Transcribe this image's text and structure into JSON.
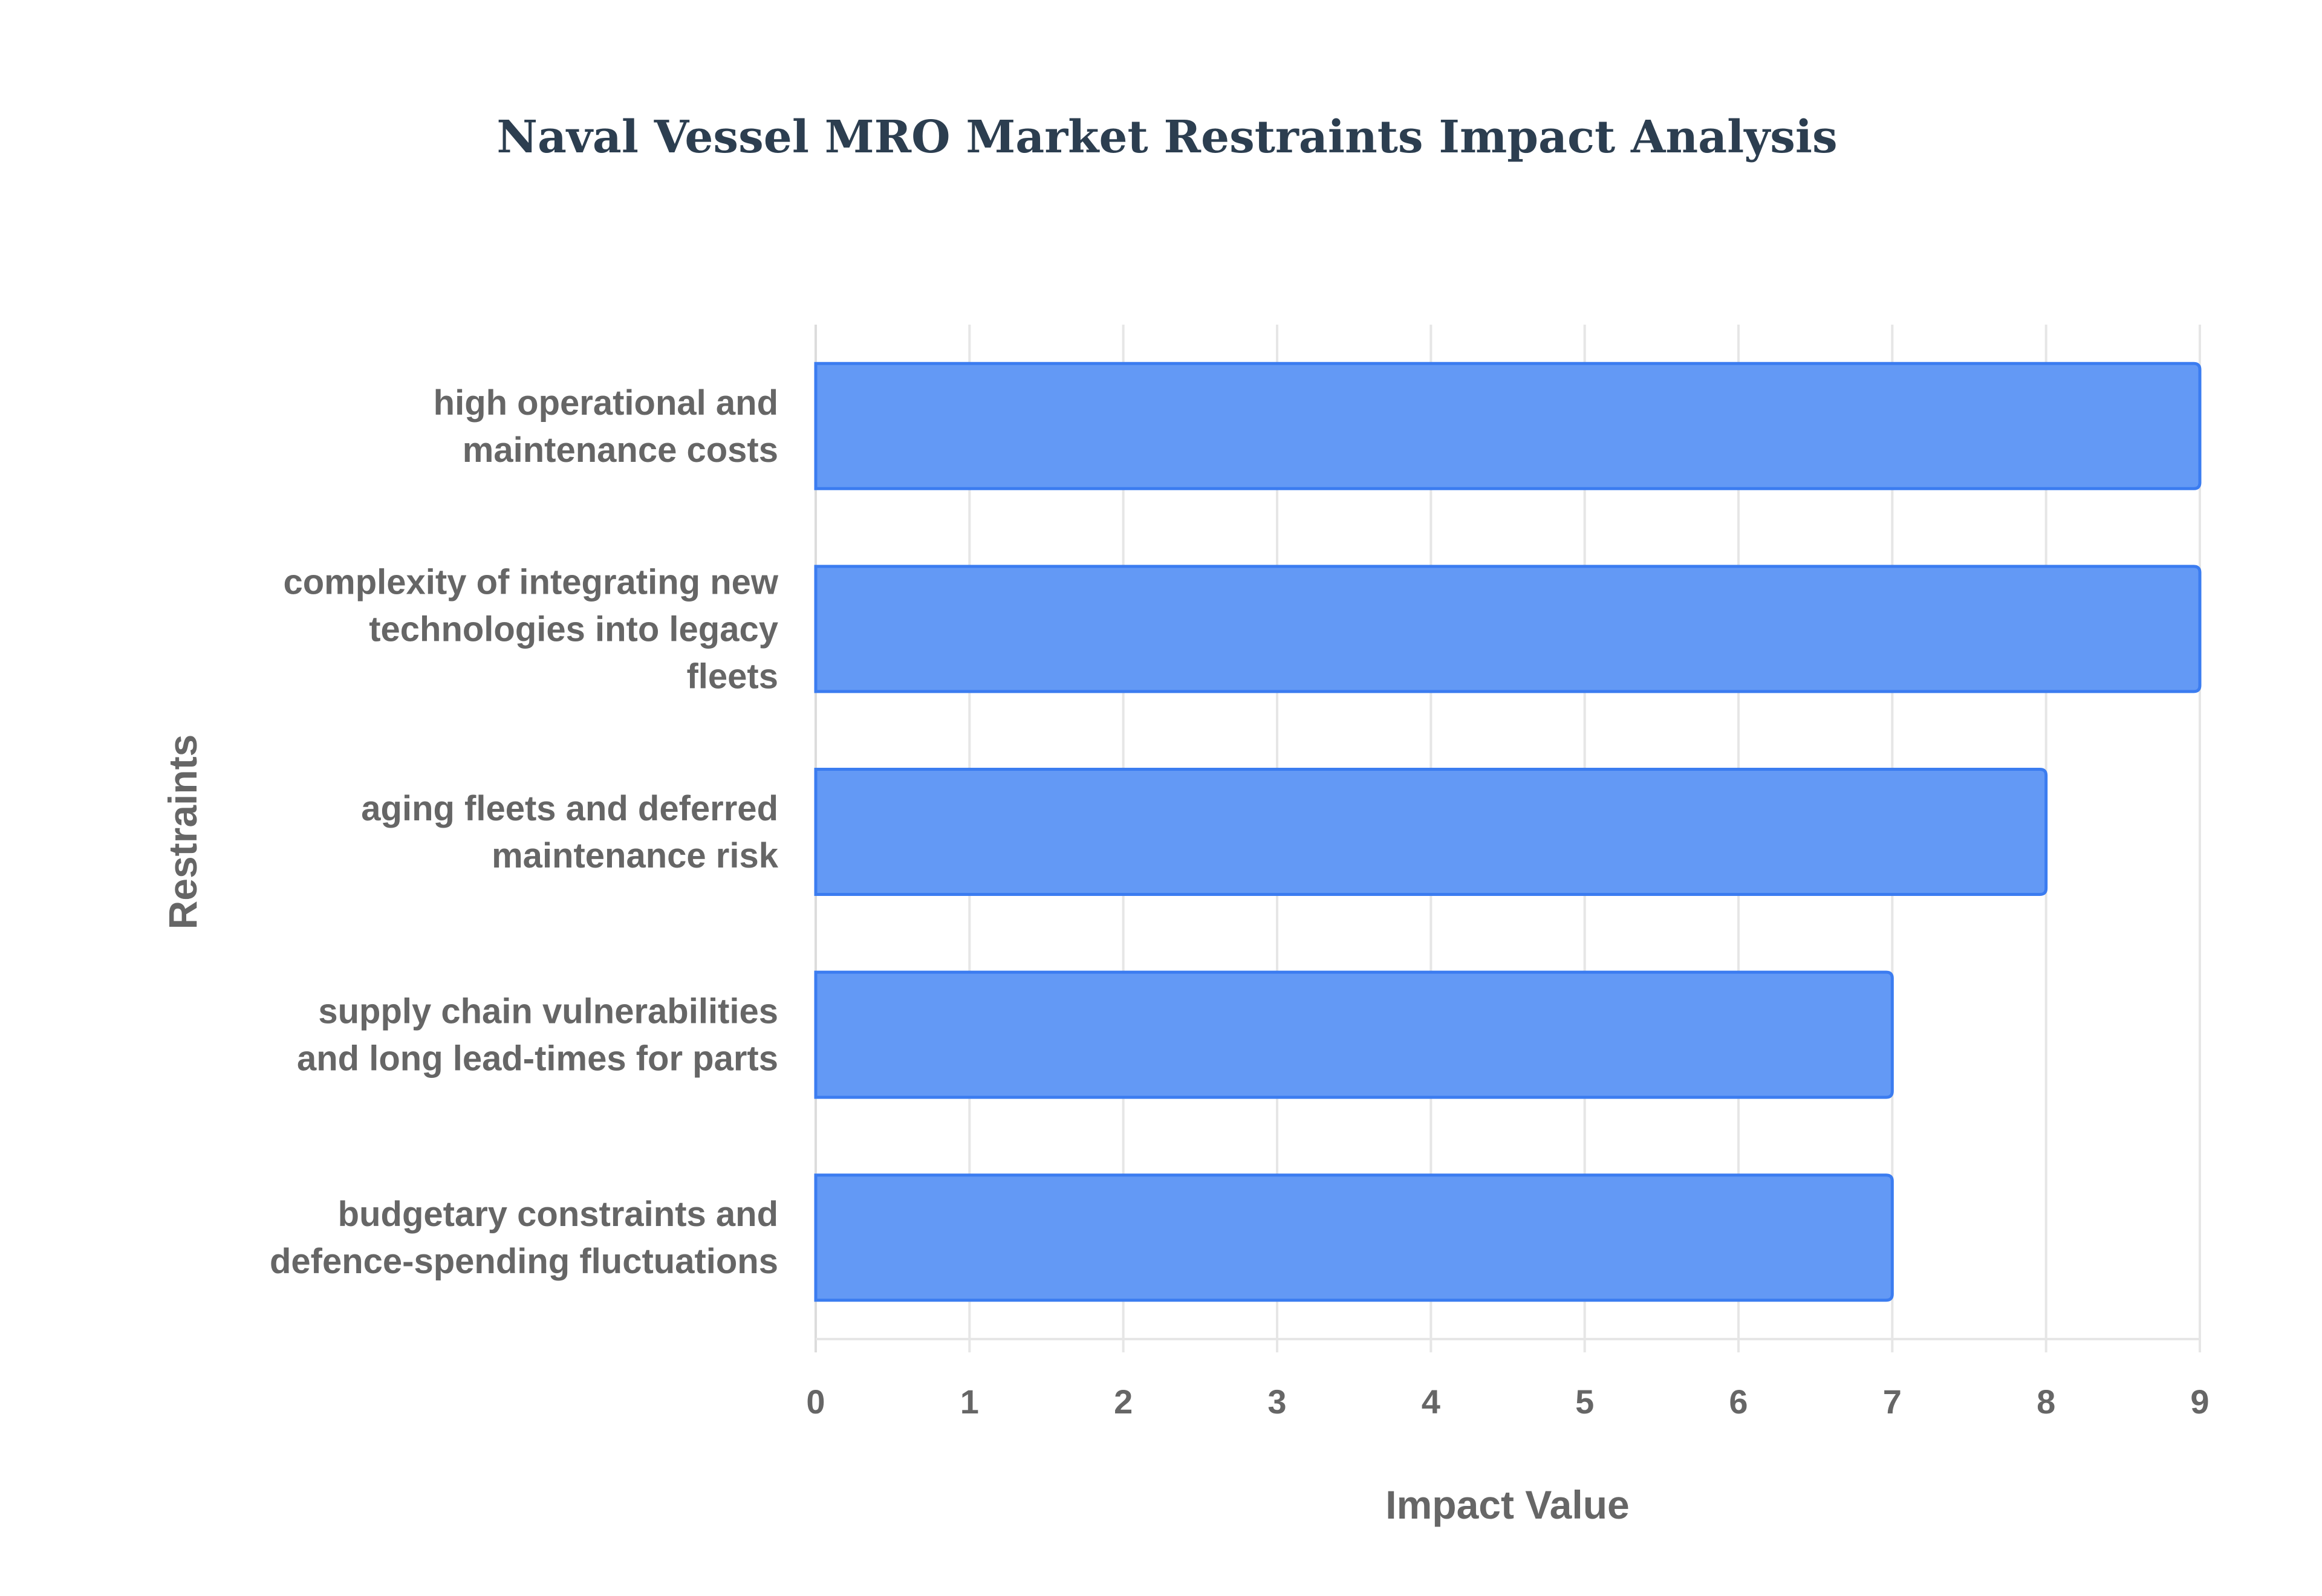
{
  "chart_data": {
    "type": "bar",
    "orientation": "horizontal",
    "title": "Naval Vessel MRO Market Restraints Impact Analysis",
    "xlabel": "Impact Value",
    "ylabel": "Restraints",
    "xlim": [
      0,
      9
    ],
    "xticks": [
      "0",
      "1",
      "2",
      "3",
      "4",
      "5",
      "6",
      "7",
      "8",
      "9"
    ],
    "grid": true,
    "categories": [
      [
        "high operational and",
        "maintenance costs"
      ],
      [
        "complexity of integrating new",
        "technologies into legacy",
        "fleets"
      ],
      [
        "aging fleets and deferred",
        "maintenance risk"
      ],
      [
        "supply chain vulnerabilities",
        "and long lead-times for parts"
      ],
      [
        "budgetary constraints and",
        "defence-spending fluctuations"
      ]
    ],
    "values": [
      9,
      9,
      8,
      7,
      7
    ],
    "colors": {
      "bar_fill": "#6399f5",
      "bar_border": "#3b7cf0",
      "grid": "#e6e6e6"
    }
  }
}
